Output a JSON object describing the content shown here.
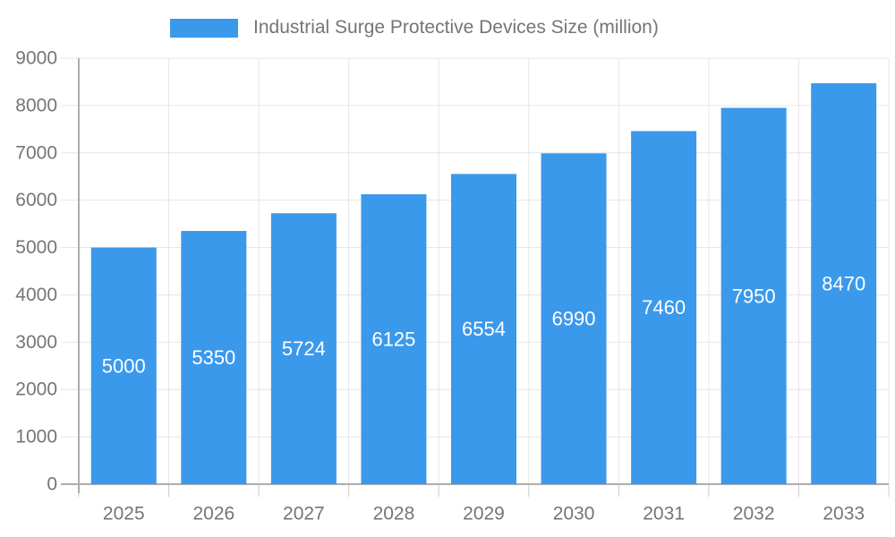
{
  "legend": {
    "label": "Industrial Surge Protective Devices Size (million)"
  },
  "chart_data": {
    "type": "bar",
    "title": "Industrial Surge Protective Devices Size (million)",
    "series_name": "Industrial Surge Protective Devices Size (million)",
    "categories": [
      "2025",
      "2026",
      "2027",
      "2028",
      "2029",
      "2030",
      "2031",
      "2032",
      "2033"
    ],
    "values": [
      5000,
      5350,
      5724,
      6125,
      6554,
      6990,
      7460,
      7950,
      8470
    ],
    "xlabel": "",
    "ylabel": "",
    "ylim": [
      0,
      9000
    ],
    "ytick_step": 1000,
    "ytick_labels": [
      "0",
      "1000",
      "2000",
      "3000",
      "4000",
      "5000",
      "6000",
      "7000",
      "8000",
      "9000"
    ],
    "grid": true,
    "legend_position": "top",
    "bar_labels_visible": true,
    "colors": {
      "bar": "#3B99EB",
      "bar_label": "#FFFFFF",
      "axis_text": "#757575",
      "grid_line": "#E6E6E6",
      "axis_line": "#ADADAD",
      "tick_line": "#CCCCCC",
      "background": "#FFFFFF"
    }
  }
}
